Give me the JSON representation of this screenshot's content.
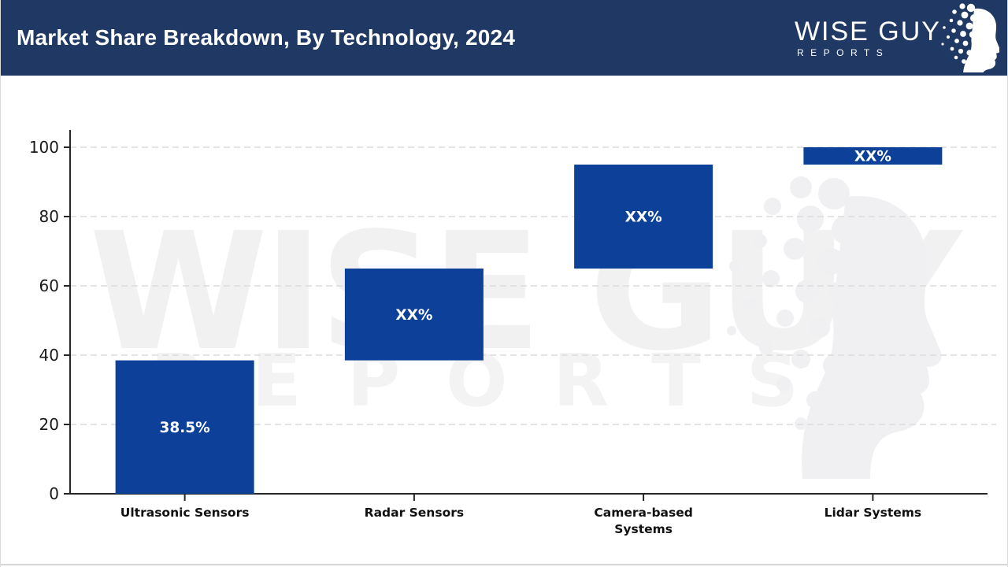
{
  "header": {
    "title": "Market Share Breakdown, By Technology, 2024",
    "logo": {
      "line1": "WISE GUY",
      "line2": "REPORTS"
    }
  },
  "watermark": {
    "line1": "WISE GUY",
    "line2": "REPORTS"
  },
  "colors": {
    "header_bg": "#1f3864",
    "bar": "#0d4199",
    "bar_label": "#ffffff",
    "grid": "#dcdcdc",
    "axis": "#262626",
    "tick_label": "#1a1a1a",
    "watermark": "#f1f1f2"
  },
  "chart_data": {
    "type": "bar",
    "subtype": "waterfall",
    "title": "Market Share Breakdown, By Technology, 2024",
    "categories": [
      "Ultrasonic Sensors",
      "Radar Sensors",
      "Camera-based Systems",
      "Lidar Systems"
    ],
    "category_label_lines": [
      [
        "Ultrasonic Sensors"
      ],
      [
        "Radar Sensors"
      ],
      [
        "Camera-based",
        "Systems"
      ],
      [
        "Lidar Systems"
      ]
    ],
    "segments": [
      {
        "category": "Ultrasonic Sensors",
        "start": 0,
        "end": 38.5,
        "label": "38.5%"
      },
      {
        "category": "Radar Sensors",
        "start": 38.5,
        "end": 65,
        "label": "XX%"
      },
      {
        "category": "Camera-based Systems",
        "start": 65,
        "end": 95,
        "label": "XX%"
      },
      {
        "category": "Lidar Systems",
        "start": 95,
        "end": 100,
        "label": "XX%"
      }
    ],
    "yticks": [
      0,
      20,
      40,
      60,
      80,
      100
    ],
    "ylim": [
      0,
      105
    ],
    "xlabel": "",
    "ylabel": "",
    "grid": "horizontal-dashed",
    "legend": "none"
  }
}
